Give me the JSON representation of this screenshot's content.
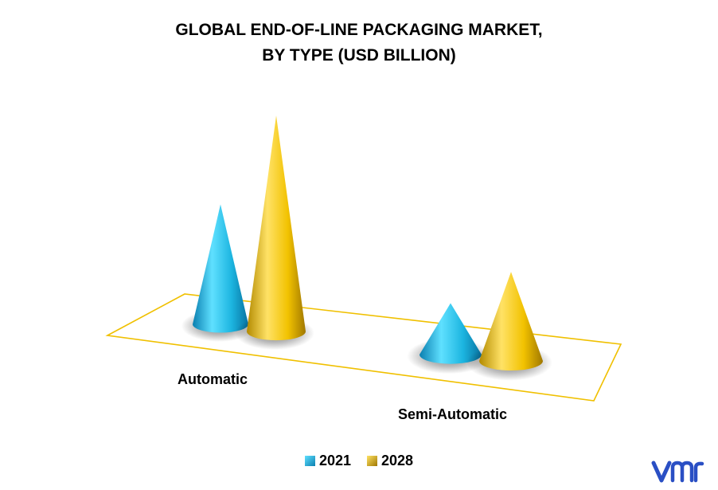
{
  "chart_data": {
    "type": "bar",
    "shape": "cone",
    "title_lines": [
      "GLOBAL END-OF-LINE PACKAGING MARKET,",
      "BY TYPE (USD BILLION)"
    ],
    "categories": [
      "Automatic",
      "Semi-Automatic"
    ],
    "series": [
      {
        "name": "2021",
        "values": [
          3.5,
          1.5
        ],
        "color": "#1cb5e0"
      },
      {
        "name": "2028",
        "values": [
          6.3,
          2.6
        ],
        "color": "#f2c200"
      }
    ],
    "xlabel": "",
    "ylabel": "",
    "grid": false,
    "legend_position": "bottom"
  },
  "logo": {
    "name": "vmr-logo",
    "color": "#2a4fc4"
  }
}
